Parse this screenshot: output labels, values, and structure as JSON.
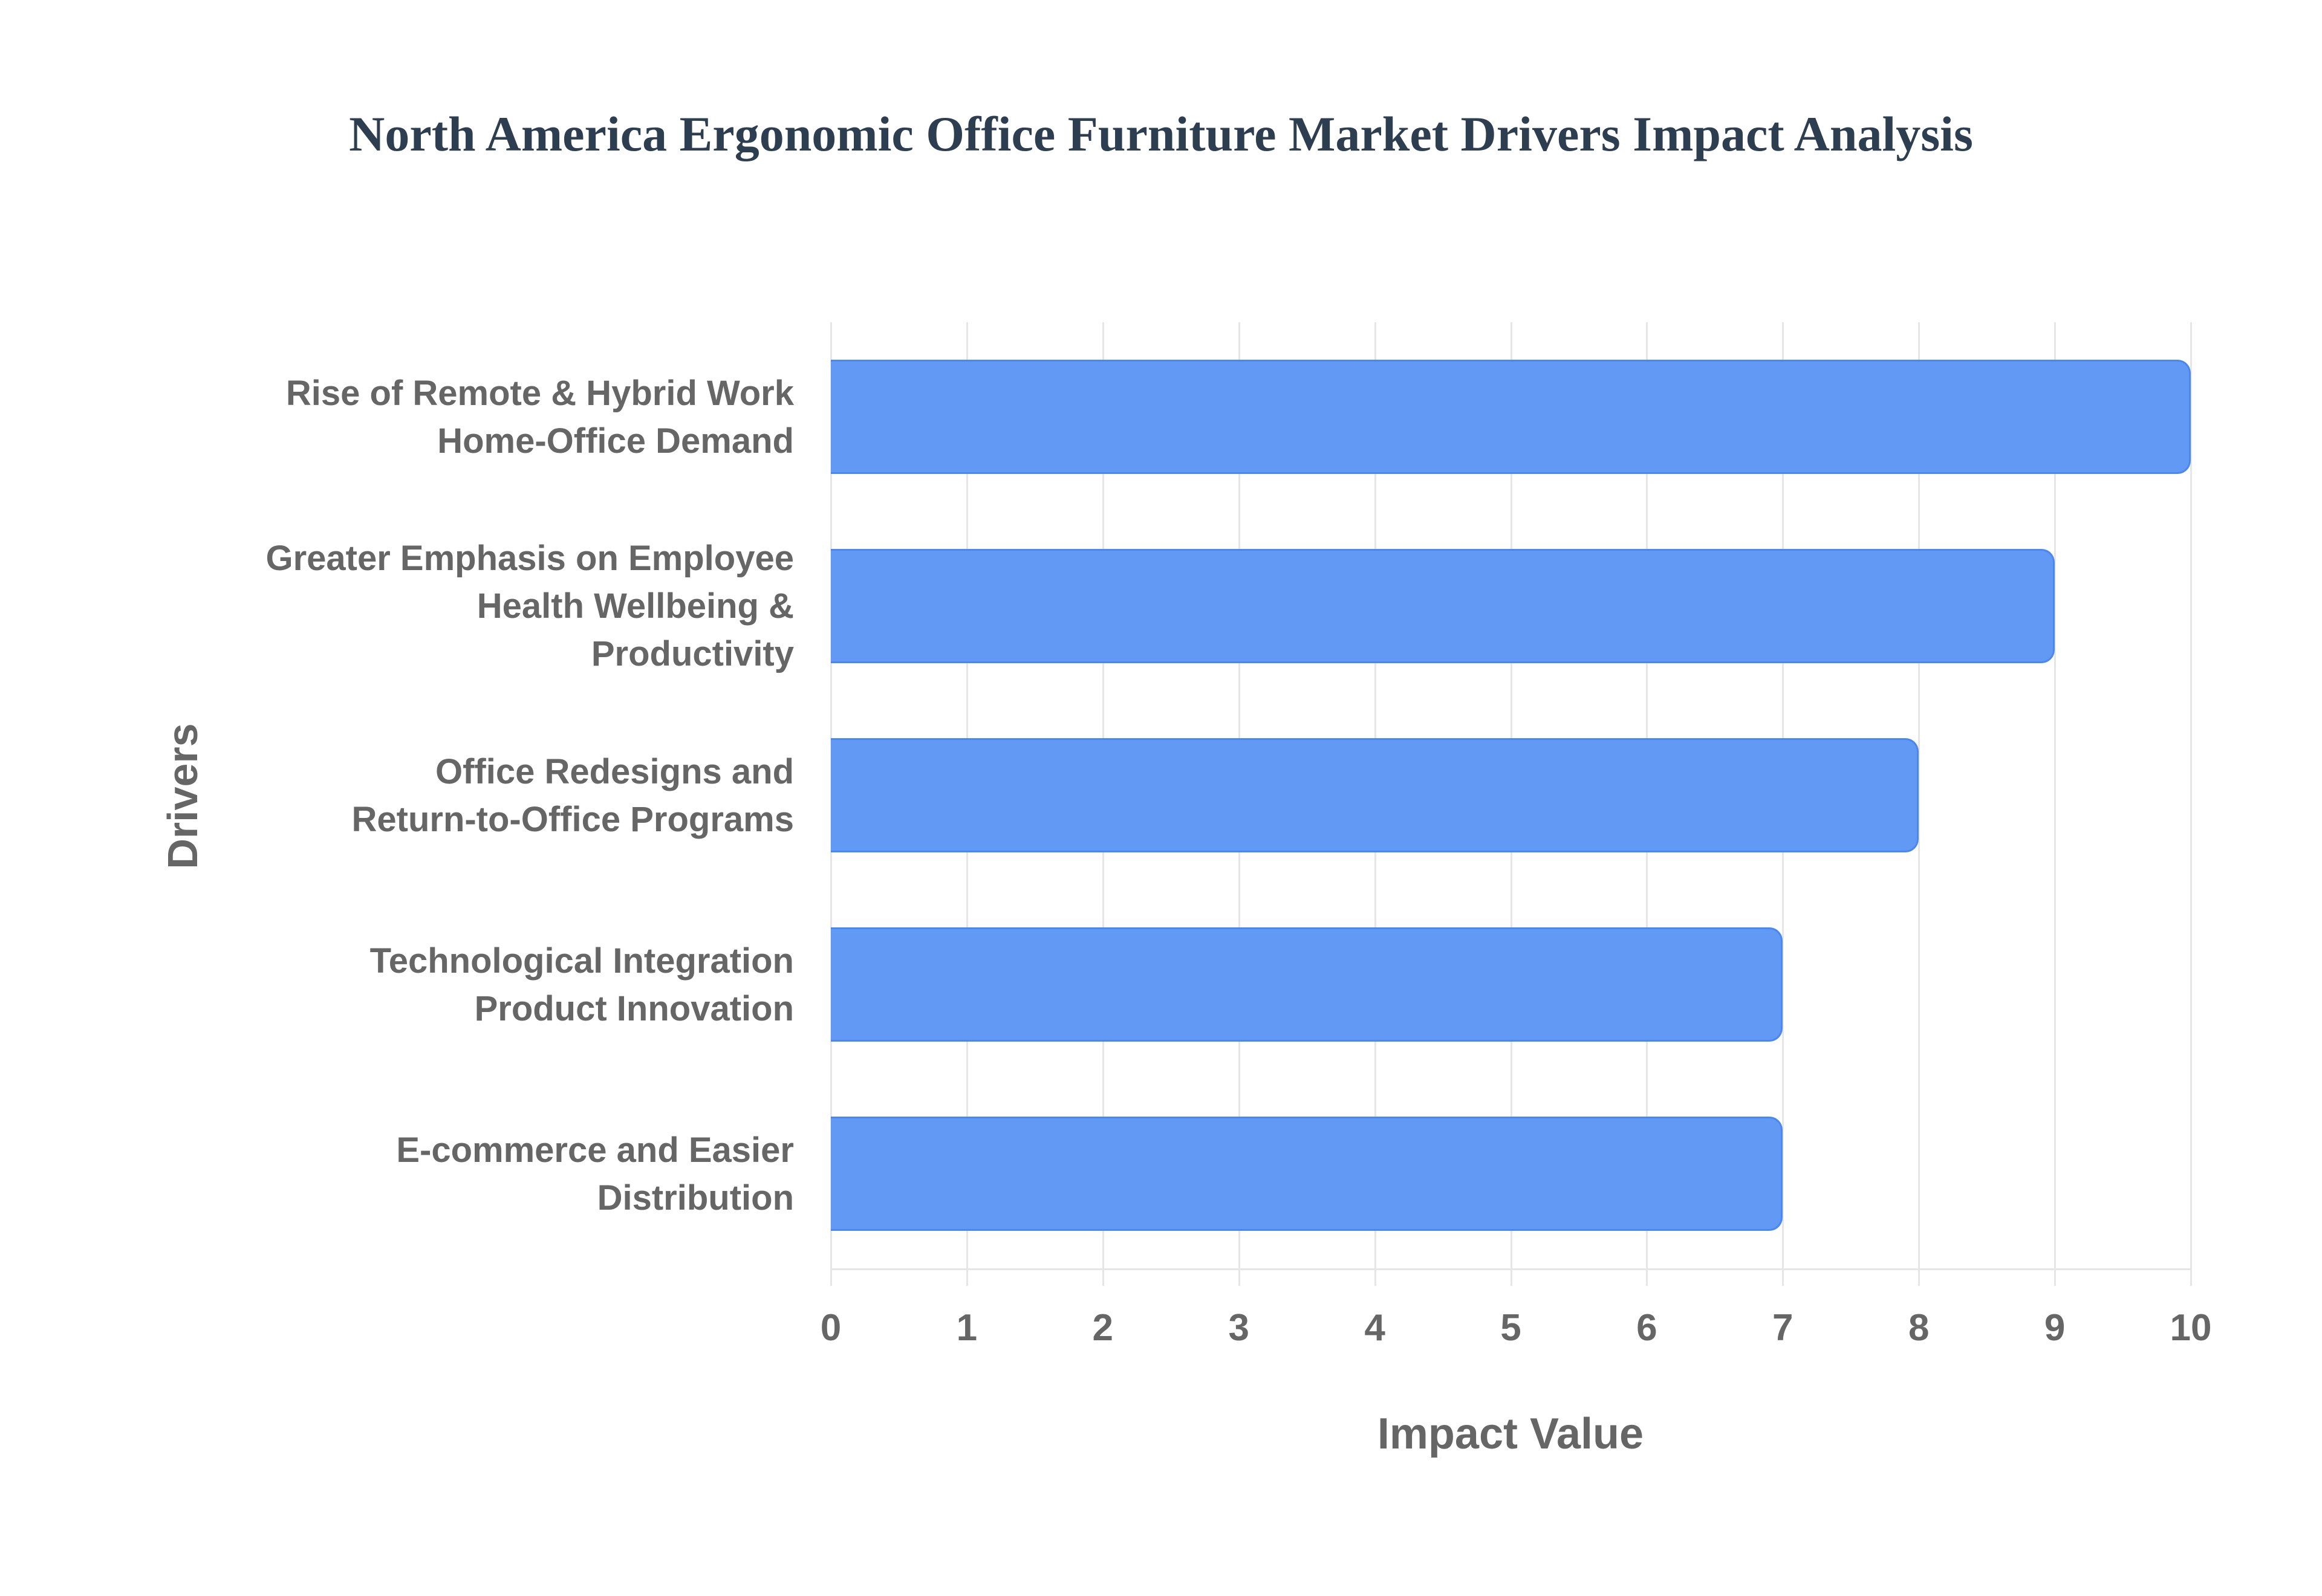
{
  "title": "North America Ergonomic Office Furniture Market Drivers Impact Analysis",
  "colors": {
    "bar_fill": "#6199f5",
    "bar_border": "#4a87f1",
    "title": "#2c3e50",
    "axis_text": "#666666",
    "grid": "#e6e6e6"
  },
  "chart_data": {
    "type": "bar",
    "orientation": "horizontal",
    "title": "North America Ergonomic Office Furniture Market Drivers Impact Analysis",
    "xlabel": "Impact Value",
    "ylabel": "Drivers",
    "xlim": [
      0,
      10
    ],
    "x_ticks": [
      "0",
      "1",
      "2",
      "3",
      "4",
      "5",
      "6",
      "7",
      "8",
      "9",
      "10"
    ],
    "grid": true,
    "legend": null,
    "categories": [
      "Rise of Remote & Hybrid Work Home-Office Demand",
      "Greater Emphasis on Employee Health Wellbeing & Productivity",
      "Office Redesigns and Return-to-Office Programs",
      "Technological Integration Product Innovation",
      "E-commerce and Easier Distribution"
    ],
    "category_lines": [
      [
        "Rise of Remote & Hybrid Work",
        "Home-Office Demand"
      ],
      [
        "Greater Emphasis on Employee",
        "Health Wellbeing &",
        "Productivity"
      ],
      [
        "Office Redesigns and",
        "Return-to-Office Programs"
      ],
      [
        "Technological Integration",
        "Product Innovation"
      ],
      [
        "E-commerce and Easier",
        "Distribution"
      ]
    ],
    "values": [
      10,
      9,
      8,
      7,
      7
    ]
  }
}
